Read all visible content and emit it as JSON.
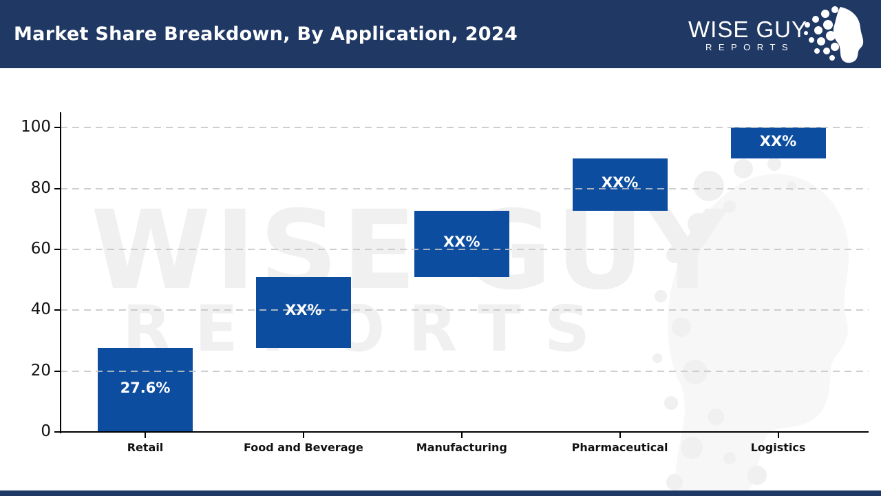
{
  "header": {
    "title": "Market Share Breakdown, By Application, 2024",
    "logo": {
      "line1": "WISE GUY",
      "line2": "REPORTS"
    }
  },
  "watermark": {
    "line1": "WISE GUY",
    "line2": "REPORTS"
  },
  "chart_data": {
    "type": "bar",
    "subtype": "waterfall-floating-bars",
    "title": "Market Share Breakdown, By Application, 2024",
    "categories": [
      "Retail",
      "Food and Beverage",
      "Manufacturing",
      "Pharmaceutical",
      "Logistics"
    ],
    "segments": [
      [
        0,
        27.6
      ],
      [
        27.6,
        51.0
      ],
      [
        51.0,
        72.6
      ],
      [
        72.6,
        89.9
      ],
      [
        89.9,
        100
      ]
    ],
    "values": [
      27.6,
      23.4,
      21.6,
      17.3,
      10.1
    ],
    "bar_labels": [
      "27.6%",
      "XX%",
      "XX%",
      "XX%",
      "XX%"
    ],
    "xlabel": "",
    "ylabel": "",
    "ylim": [
      0,
      100
    ],
    "yticks": [
      0,
      20,
      40,
      60,
      80,
      100
    ],
    "grid": "horizontal dashed, drawn above bars",
    "legend": "none"
  },
  "colors": {
    "header_bg": "#203864",
    "footer_bg": "#203864",
    "bar": "#0C4DA0",
    "grid": "#c6c6c6",
    "axis": "#000000",
    "bar_label_text": "#ffffff",
    "watermark": "#f0f0f0"
  }
}
